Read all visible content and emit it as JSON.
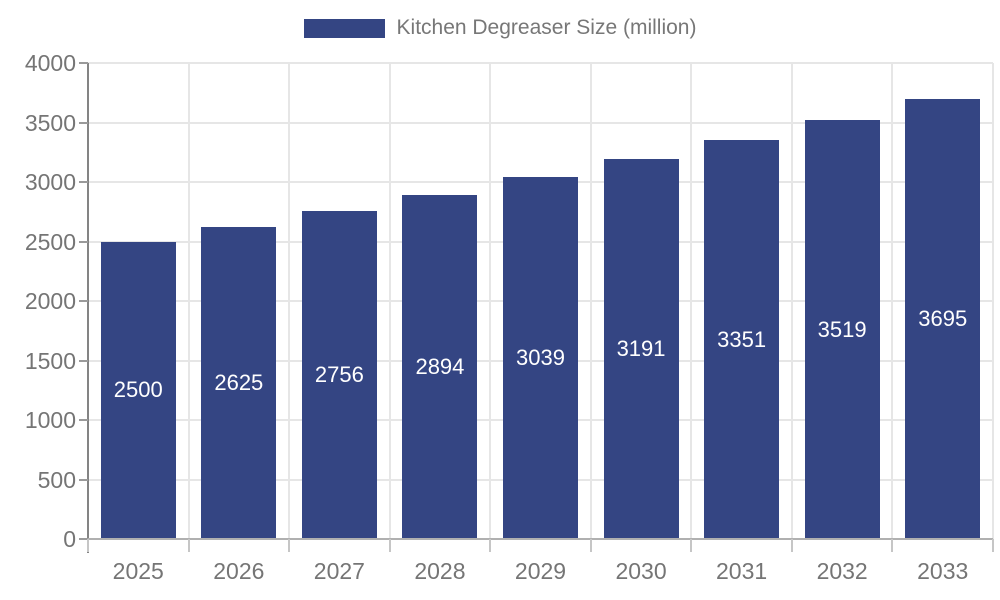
{
  "legend": {
    "label": "Kitchen Degreaser Size (million)"
  },
  "colors": {
    "bar": "#344583",
    "grid": "#e6e6e6",
    "axis_line": "#848484",
    "baseline": "#b0b0b0",
    "tick_label": "#757575",
    "legend_text": "#777777",
    "bar_label": "#ffffff",
    "background": "#ffffff"
  },
  "chart_data": {
    "type": "bar",
    "title": "Kitchen Degreaser Size (million)",
    "categories": [
      "2025",
      "2026",
      "2027",
      "2028",
      "2029",
      "2030",
      "2031",
      "2032",
      "2033"
    ],
    "series": [
      {
        "name": "Kitchen Degreaser Size (million)",
        "values": [
          2500,
          2625,
          2756,
          2894,
          3039,
          3191,
          3351,
          3519,
          3695
        ]
      }
    ],
    "xlabel": "",
    "ylabel": "",
    "ylim": [
      0,
      4000
    ],
    "yticks": [
      0,
      500,
      1000,
      1500,
      2000,
      2500,
      3000,
      3500,
      4000
    ],
    "grid": true,
    "legend_position": "top-center",
    "value_labels": "inside-center"
  }
}
